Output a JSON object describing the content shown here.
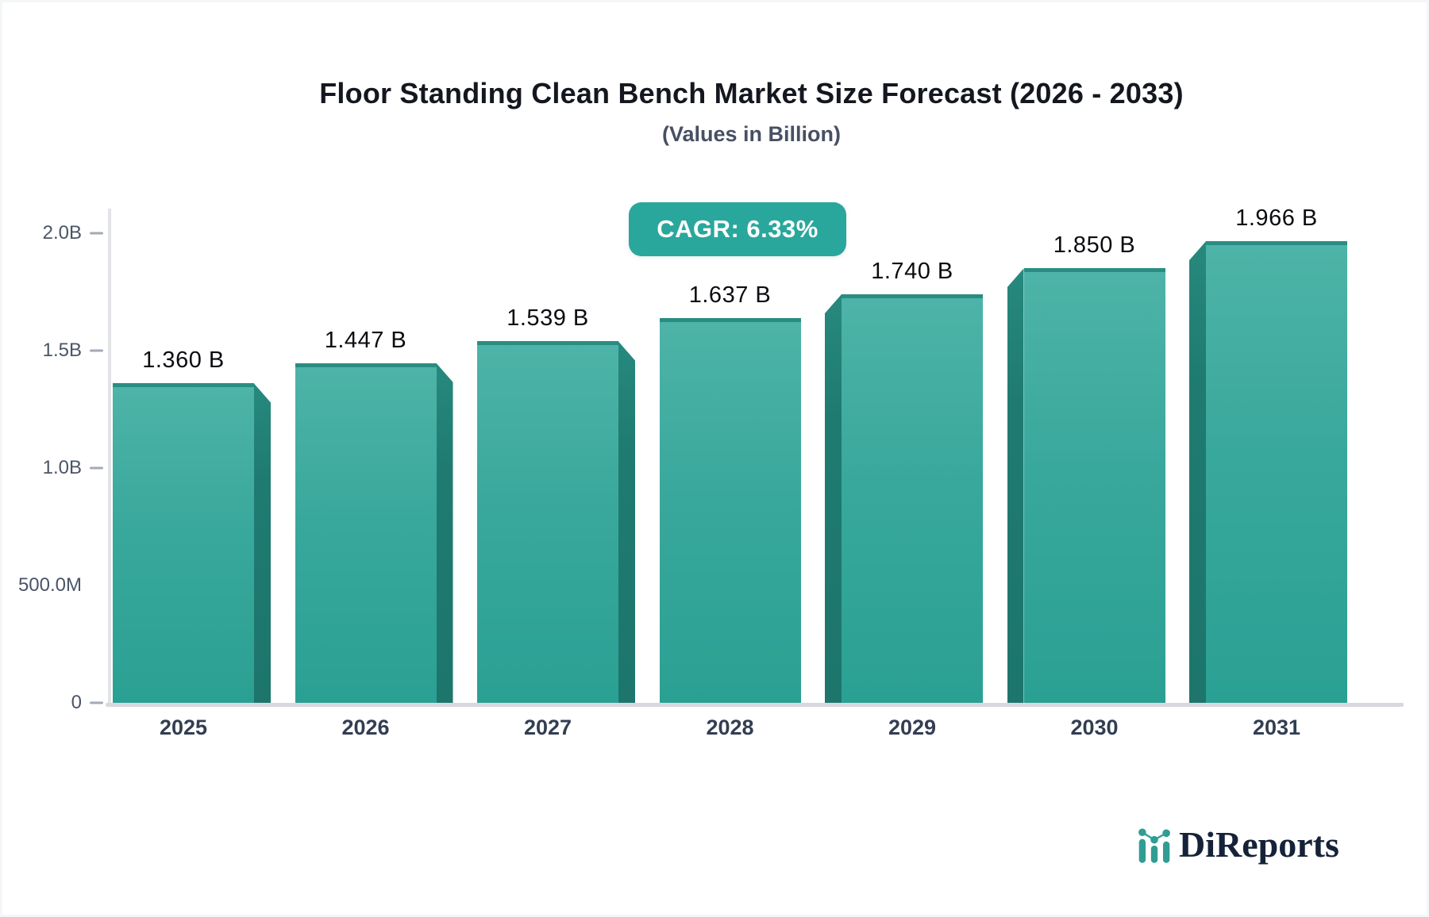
{
  "header": {
    "title": "Floor Standing Clean Bench Market Size Forecast (2026 - 2033)",
    "subtitle": "(Values in Billion)"
  },
  "cagr_badge": {
    "label": "CAGR: 6.33%",
    "background": "#2aa79c",
    "text_color": "#ffffff"
  },
  "chart_data": {
    "type": "bar",
    "title": "Floor Standing Clean Bench Market Size Forecast (2026 - 2033)",
    "subtitle": "(Values in Billion)",
    "categories": [
      "2025",
      "2026",
      "2027",
      "2028",
      "2029",
      "2030",
      "2031"
    ],
    "values": [
      1.36,
      1.447,
      1.539,
      1.637,
      1.74,
      1.85,
      1.966
    ],
    "value_labels": [
      "1.360 B",
      "1.447 B",
      "1.539 B",
      "1.637 B",
      "1.740 B",
      "1.850 B",
      "1.966 B"
    ],
    "unit": "Billion",
    "cagr": "6.33%",
    "xlabel": "",
    "ylabel": "",
    "ylim": [
      0,
      2.0
    ],
    "yticks": [
      {
        "value": 2.0,
        "label": "2.0B",
        "tick": true
      },
      {
        "value": 1.5,
        "label": "1.5B",
        "tick": true
      },
      {
        "value": 1.0,
        "label": "1.0B",
        "tick": true
      },
      {
        "value": 0.5,
        "label": "500.0M",
        "tick": false
      },
      {
        "value": 0.0,
        "label": "0",
        "tick": true
      }
    ],
    "grid": false,
    "legend": false,
    "bar_colors": {
      "face_top": "#4eb3a8",
      "face_bottom": "#2aa093",
      "face_border_top": "#2a8d82",
      "side_face": "#1f7b71"
    },
    "style_note": "pseudo-3D: left bars show right side face, right bars show left side face, center bar flat"
  },
  "footer": {
    "brand": "DiReports",
    "logo_teal": "#2f9d95",
    "text_color": "#152238"
  }
}
